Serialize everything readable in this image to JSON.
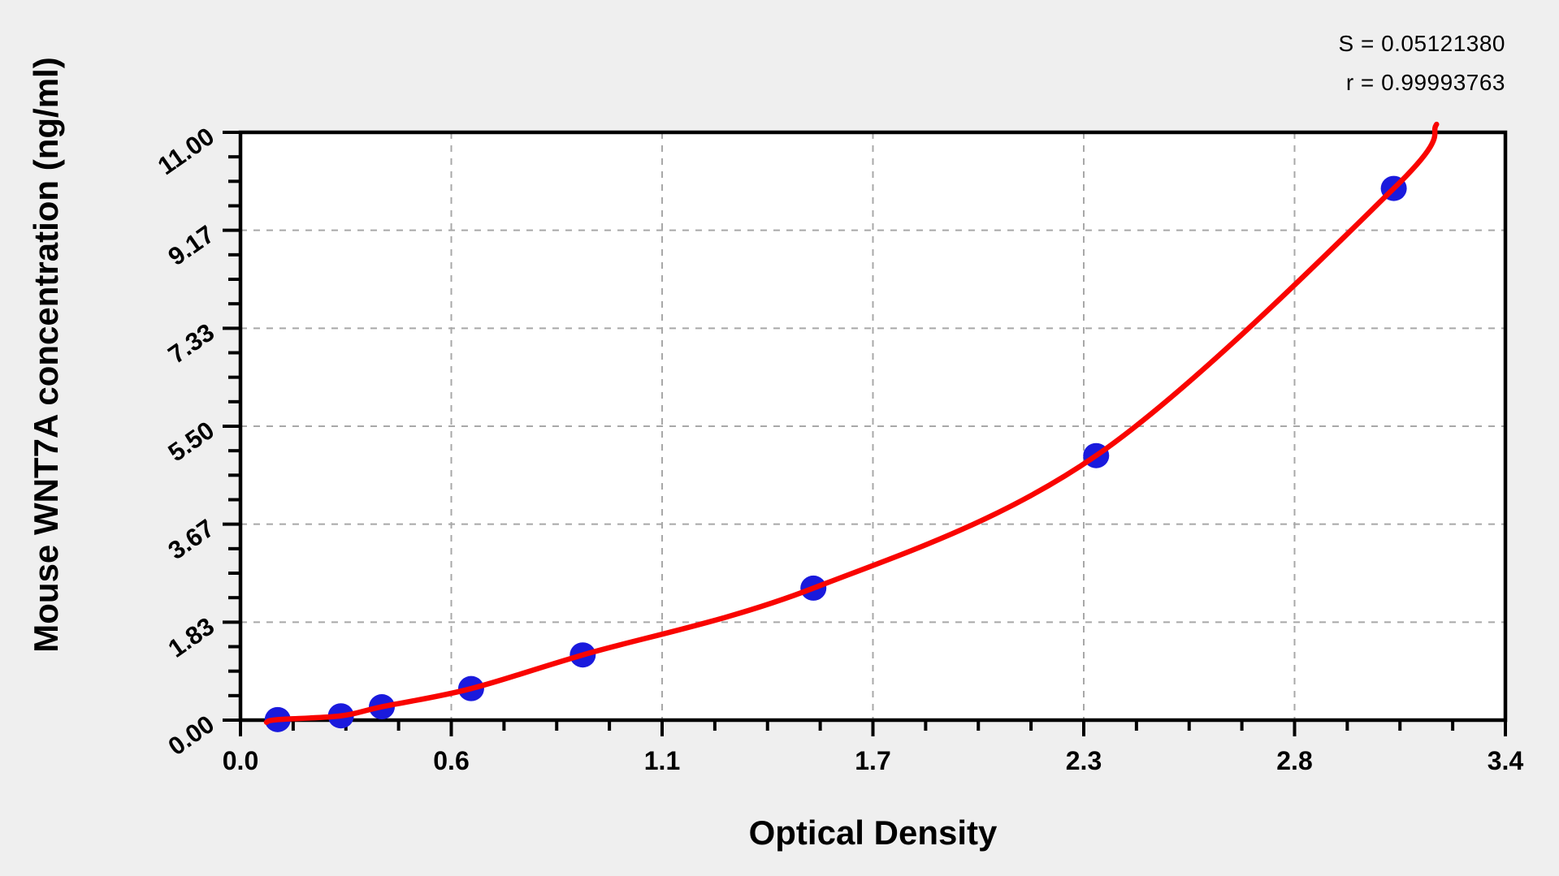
{
  "stats": {
    "s_label": "S = 0.05121380",
    "r_label": "r = 0.99993763"
  },
  "chart_data": {
    "type": "scatter",
    "title": "",
    "xlabel": "Optical Density",
    "ylabel": "Mouse WNT7A concentration (ng/ml)",
    "x": [
      0.1,
      0.27,
      0.38,
      0.62,
      0.92,
      1.54,
      2.3,
      3.1
    ],
    "y": [
      0.01,
      0.08,
      0.25,
      0.59,
      1.22,
      2.47,
      4.95,
      9.95
    ],
    "series": [
      {
        "name": "standard-points",
        "points": [
          [
            0.1,
            0.01
          ],
          [
            0.27,
            0.08
          ],
          [
            0.38,
            0.25
          ],
          [
            0.62,
            0.59
          ],
          [
            0.92,
            1.22
          ],
          [
            1.54,
            2.47
          ],
          [
            2.3,
            4.95
          ],
          [
            3.1,
            9.95
          ]
        ]
      }
    ],
    "fit_curve_extension": {
      "start": [
        0.07,
        -0.04
      ],
      "end": [
        3.215,
        11.15
      ]
    },
    "xlim": [
      0,
      3.4
    ],
    "ylim": [
      0,
      11
    ],
    "x_tick_labels": [
      "0.0",
      "0.6",
      "1.1",
      "1.7",
      "2.3",
      "2.8",
      "3.4"
    ],
    "y_tick_labels": [
      "0.00",
      "1.83",
      "3.67",
      "5.50",
      "7.33",
      "9.17",
      "11.00"
    ],
    "minor_ticks_per_major": 4,
    "grid": "dashed-major-interior",
    "legend_position": "none",
    "annotations": [
      "S = 0.05121380",
      "r = 0.99993763"
    ]
  },
  "colors": {
    "background": "#efefef",
    "plot_background": "#ffffff",
    "axis": "#000000",
    "grid": "#a8a8a8",
    "curve": "#f90400",
    "point": "#1a1add",
    "text": "#000000"
  }
}
